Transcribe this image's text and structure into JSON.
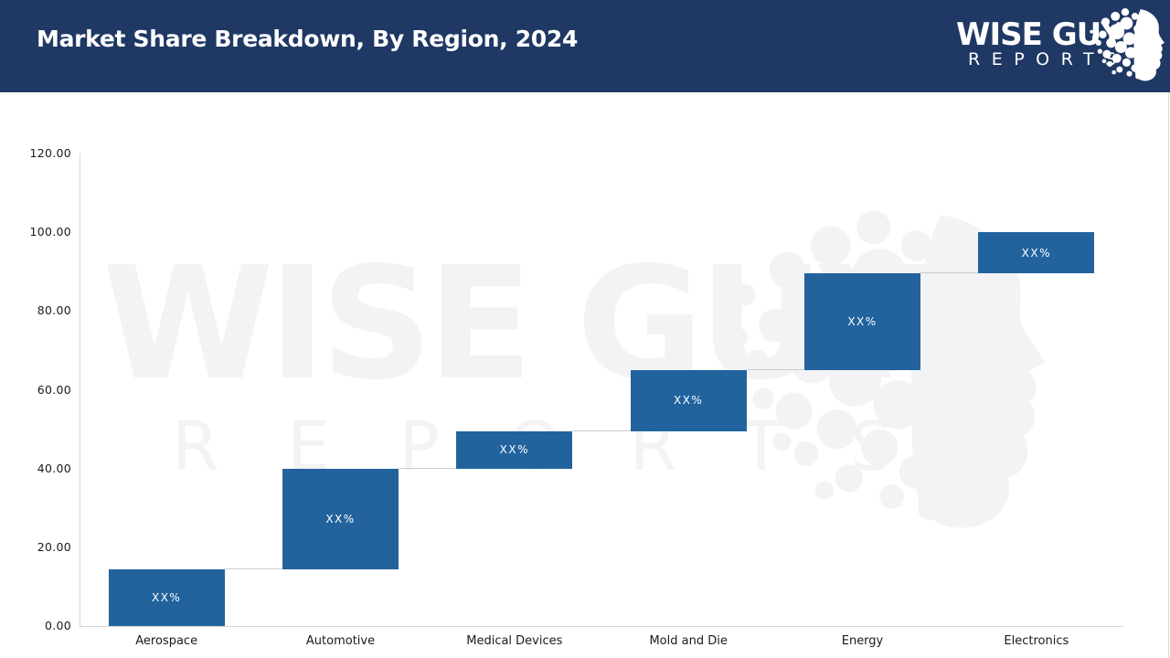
{
  "header": {
    "title": "Market Share Breakdown, By Region, 2024",
    "bg_color": "#1f3864",
    "logo": {
      "line1": "WISE GUY",
      "line2": "REPORTS"
    }
  },
  "watermark": {
    "line1": "WISE GUY",
    "line2": "REPORTS"
  },
  "chart_data": {
    "type": "bar",
    "subtype": "waterfall",
    "title": "Market Share Breakdown, By Region, 2024",
    "categories": [
      "Aerospace",
      "Automotive",
      "Medical Devices",
      "Mold and Die",
      "Energy",
      "Electronics"
    ],
    "series": [
      {
        "name": "Market Share",
        "values": [
          14.5,
          25.5,
          9.5,
          15.5,
          24.5,
          10.5
        ],
        "cumulative_start": [
          0,
          14.5,
          40,
          49.5,
          65,
          89.5
        ],
        "cumulative_end": [
          14.5,
          40,
          49.5,
          65,
          89.5,
          100
        ],
        "bar_labels": [
          "XX%",
          "XX%",
          "XX%",
          "XX%",
          "XX%",
          "XX%"
        ]
      }
    ],
    "xlabel": "",
    "ylabel": "",
    "ylim": [
      0,
      120
    ],
    "yticks": [
      "0.00",
      "20.00",
      "40.00",
      "60.00",
      "80.00",
      "100.00",
      "120.00"
    ],
    "grid": false,
    "legend": "none",
    "bar_color": "#22639e",
    "bar_label_color": "#ffffff",
    "connector_color": "#cccccc",
    "axis_color": "#d6d6d6",
    "tick_label_color": "#1a1a1a"
  }
}
